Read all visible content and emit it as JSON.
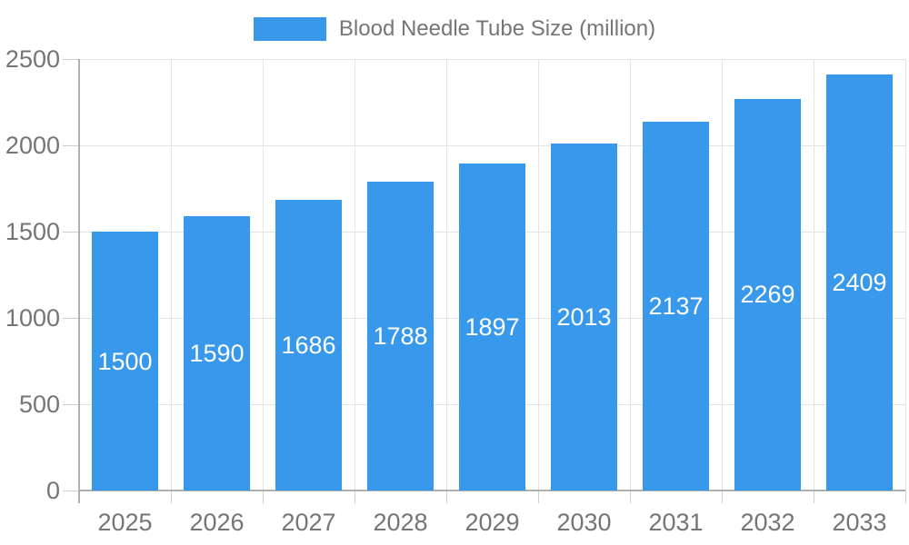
{
  "chart_data": {
    "type": "bar",
    "title": "Blood Needle Tube Size (million)",
    "legend": [
      "Blood Needle Tube Size (million)"
    ],
    "legend_position": "top-center",
    "categories": [
      "2025",
      "2026",
      "2027",
      "2028",
      "2029",
      "2030",
      "2031",
      "2032",
      "2033"
    ],
    "values": [
      1500,
      1590,
      1686,
      1788,
      1897,
      2013,
      2137,
      2269,
      2409
    ],
    "value_labels": [
      "1500",
      "1590",
      "1686",
      "1788",
      "1897",
      "2013",
      "2137",
      "2269",
      "2409"
    ],
    "value_label_position": "inside-middle",
    "xlabel": "",
    "ylabel": "",
    "ylim": [
      0,
      2500
    ],
    "yticks": [
      0,
      500,
      1000,
      1500,
      2000,
      2500
    ],
    "ytick_labels": [
      "0",
      "500",
      "1000",
      "1500",
      "2000",
      "2500"
    ],
    "grid": "horizontal-and-vertical",
    "colors": {
      "bar": "#3899EC",
      "value_label": "#FFFFFF",
      "axis_text": "#757575",
      "legend_text": "#757575",
      "gridline": "#E3E3E3",
      "axis_line": "#B0B0B0",
      "tick": "#CCCCCC",
      "background": "#FFFFFF"
    }
  }
}
